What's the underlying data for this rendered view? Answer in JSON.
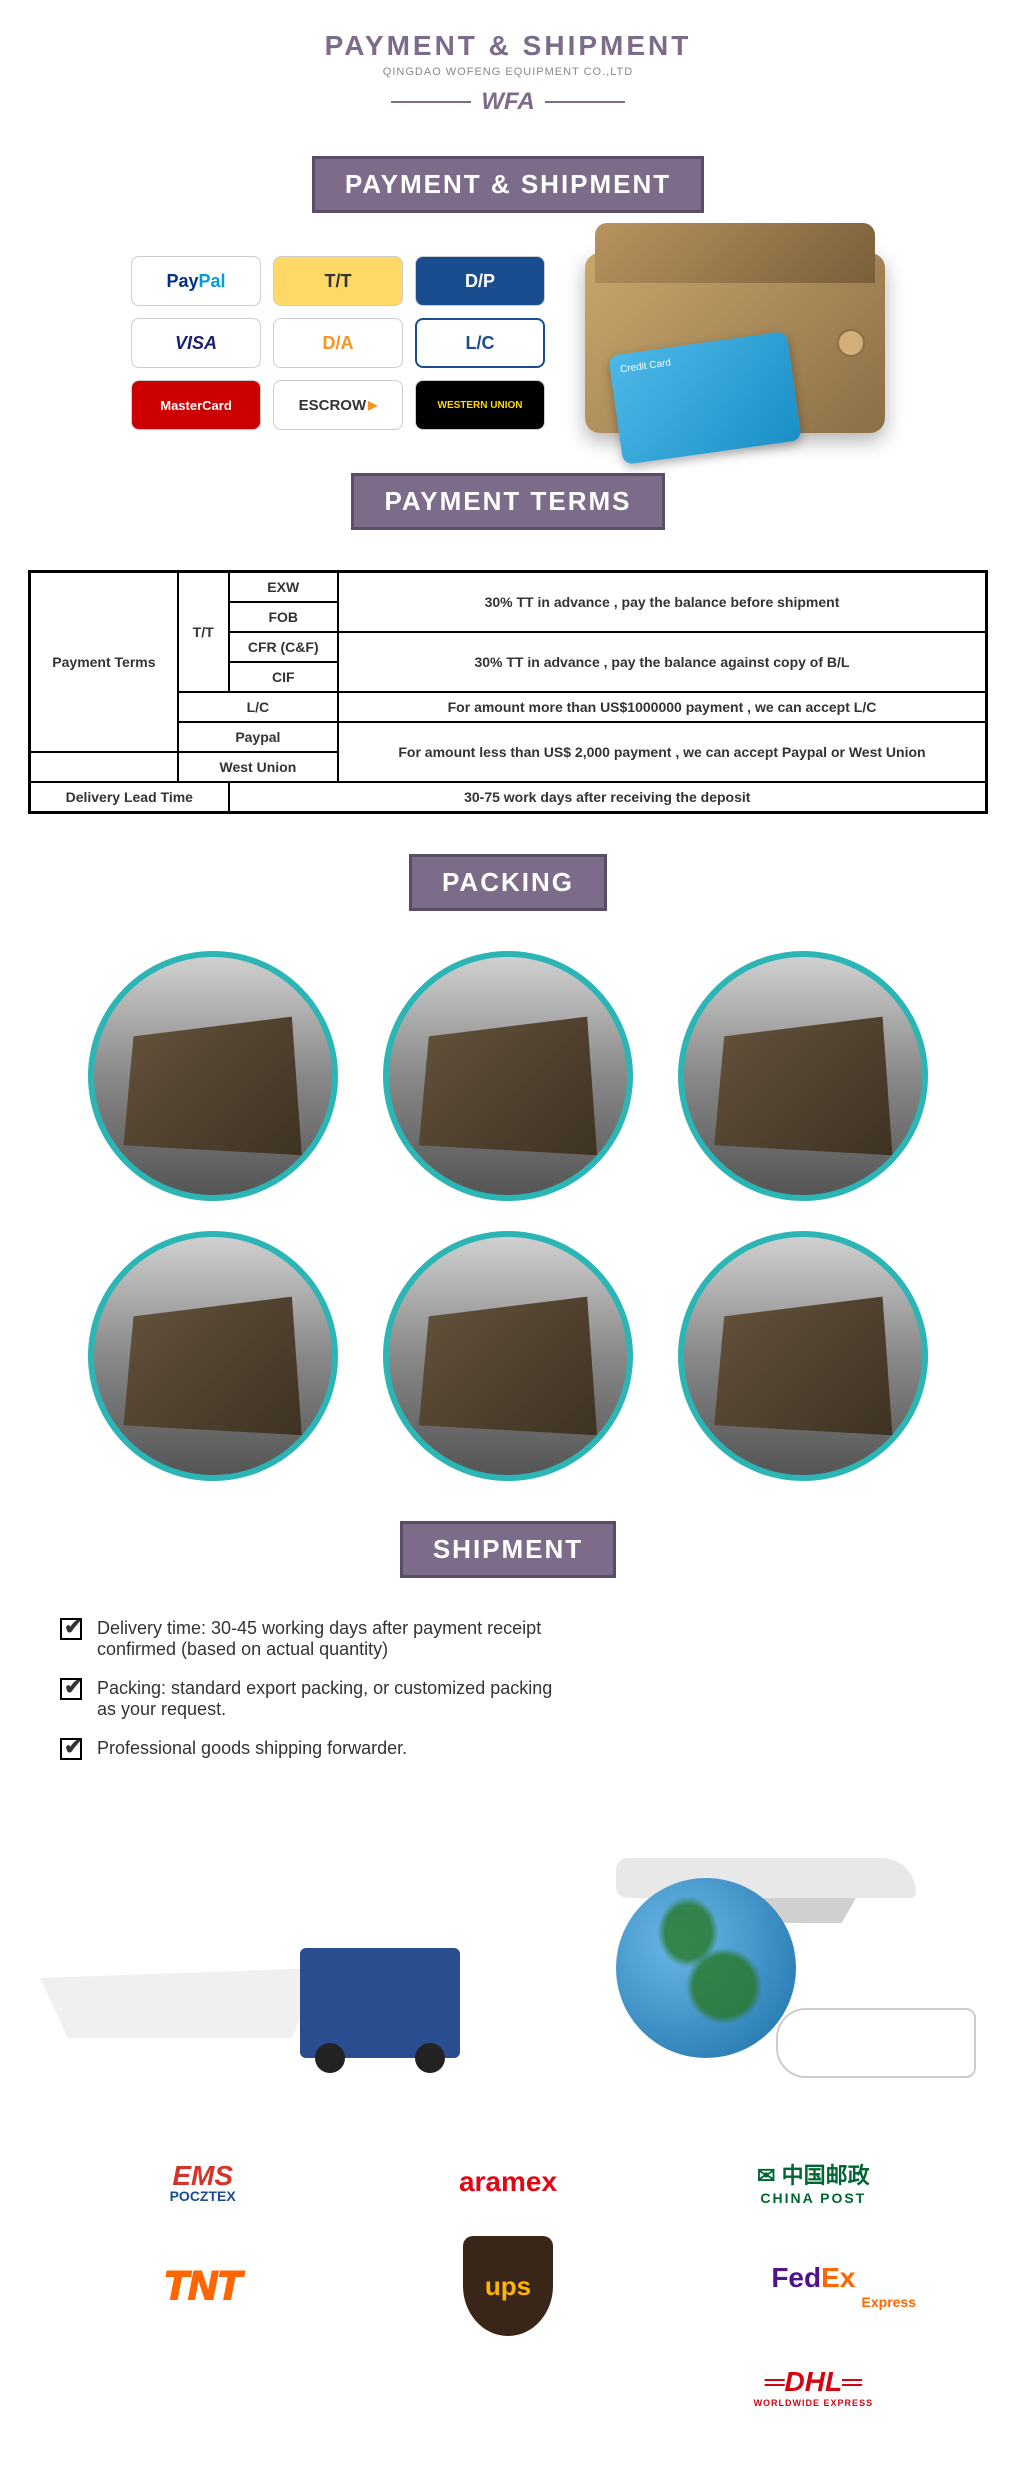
{
  "header": {
    "title": "PAYMENT & SHIPMENT",
    "subtitle": "QINGDAO WOFENG EQUIPMENT CO.,LTD",
    "logo": "WFA",
    "title_color": "#7d6b8a",
    "title_fontsize": 28
  },
  "banners": {
    "payment_shipment": "PAYMENT & SHIPMENT",
    "payment_terms": "PAYMENT TERMS",
    "packing": "PACKING",
    "shipment": "SHIPMENT",
    "bg_color": "#7d6b8a",
    "text_color": "#ffffff",
    "fontsize": 26
  },
  "payment_methods": {
    "badges": [
      {
        "label": "PayPal",
        "bg": "#ffffff",
        "color": "#003087"
      },
      {
        "label": "T/T",
        "bg": "#ffd966",
        "color": "#333333"
      },
      {
        "label": "D/P",
        "bg": "#1a4d8f",
        "color": "#ffffff"
      },
      {
        "label": "VISA",
        "bg": "#ffffff",
        "color": "#1a1f71"
      },
      {
        "label": "D/A",
        "bg": "#ffffff",
        "color": "#f7931e"
      },
      {
        "label": "L/C",
        "bg": "#ffffff",
        "color": "#1a4d8f"
      },
      {
        "label": "MasterCard",
        "bg": "#cc0000",
        "color": "#ffffff"
      },
      {
        "label": "ESCROW",
        "bg": "#ffffff",
        "color": "#333333"
      },
      {
        "label": "WESTERN UNION",
        "bg": "#000000",
        "color": "#ffd700"
      }
    ],
    "wallet_card_text": "Credit Card"
  },
  "terms_table": {
    "row_header": "Payment Terms",
    "tt_label": "T/T",
    "tt_terms": [
      "EXW",
      "FOB",
      "CFR (C&F)",
      "CIF"
    ],
    "tt_desc1": "30% TT in advance , pay the balance before shipment",
    "tt_desc2": "30% TT in advance , pay the balance against copy of B/L",
    "lc_label": "L/C",
    "lc_desc": "For amount more than US$1000000 payment , we can accept L/C",
    "paypal_label": "Paypal",
    "wu_label": "West Union",
    "paypal_wu_desc": "For amount less than US$ 2,000 payment , we can accept Paypal or West Union",
    "delivery_label": "Delivery Lead Time",
    "delivery_desc": "30-75 work days after receiving the deposit",
    "border_color": "#000000",
    "fontsize": 14
  },
  "packing": {
    "circle_count": 6,
    "circle_border_color": "#2bb5b5",
    "circle_border_width": 6,
    "circle_size": 250
  },
  "shipment_info": {
    "items": [
      "Delivery time: 30-45  working days after payment receipt confirmed (based on actual quantity)",
      "Packing: standard export packing, or customized packing as your request.",
      "Professional goods shipping forwarder."
    ],
    "fontsize": 18
  },
  "carriers": [
    {
      "name": "EMS",
      "sub": "POCZTEX",
      "color": "#d4342a"
    },
    {
      "name": "aramex",
      "sub": "",
      "color": "#e30613"
    },
    {
      "name": "中国邮政",
      "sub": "CHINA POST",
      "color": "#006633"
    },
    {
      "name": "TNT",
      "sub": "",
      "color": "#ff6600"
    },
    {
      "name": "ups",
      "sub": "",
      "color": "#ffb500"
    },
    {
      "name": "FedEx",
      "sub": "Express",
      "color": "#4d148c"
    },
    {
      "name": "DHL",
      "sub": "WORLDWIDE EXPRESS",
      "color": "#d40511"
    }
  ]
}
